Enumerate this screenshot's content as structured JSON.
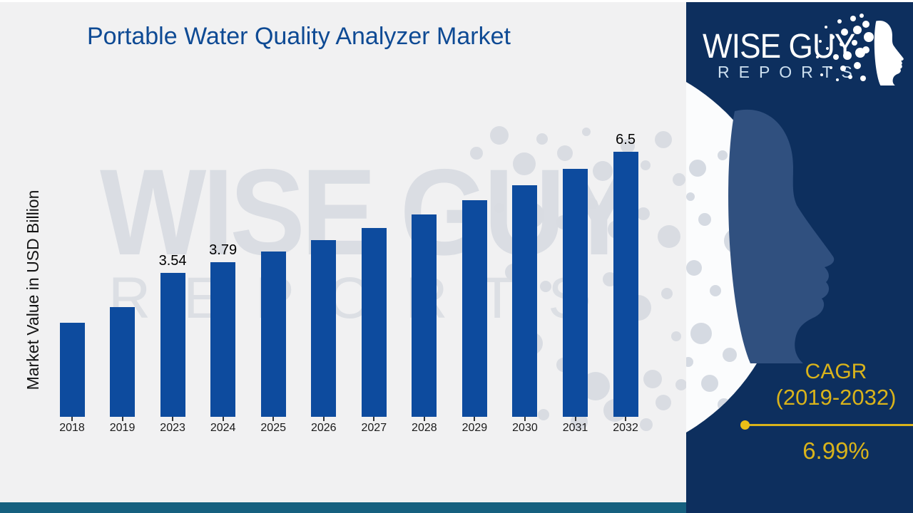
{
  "watermark": {
    "line1": "WISE GUY",
    "line2": "REPORTS"
  },
  "logo": {
    "line1": "WISE GUY",
    "line2": "REPORTS"
  },
  "cagr": {
    "heading": "CAGR",
    "range": "(2019-2032)",
    "value": "6.99%"
  },
  "chart_data": {
    "type": "bar",
    "title": "Portable Water Quality Analyzer Market",
    "ylabel": "Market Value in USD Billion",
    "xlabel": "",
    "categories": [
      "2018",
      "2019",
      "2023",
      "2024",
      "2025",
      "2026",
      "2027",
      "2028",
      "2029",
      "2030",
      "2031",
      "2032"
    ],
    "values": [
      2.31,
      2.7,
      3.54,
      3.79,
      4.05,
      4.34,
      4.64,
      4.96,
      5.31,
      5.68,
      6.08,
      6.5
    ],
    "data_labels": [
      "",
      "",
      "3.54",
      "3.79",
      "",
      "",
      "",
      "",
      "",
      "",
      "",
      "6.5"
    ],
    "ylim": [
      0,
      7
    ],
    "grid": false,
    "legend": null,
    "bar_color": "#0d4b9e"
  },
  "colors": {
    "background": "#f1f1f2",
    "bar": "#0d4b9e",
    "title_text": "#0e4a94",
    "panel_navy": "#0d2f5e",
    "accent_gold": "#d9b31b",
    "teal_strip": "#16607f",
    "watermark_gray": "#d9dce2",
    "face_blue": "#30507f"
  }
}
